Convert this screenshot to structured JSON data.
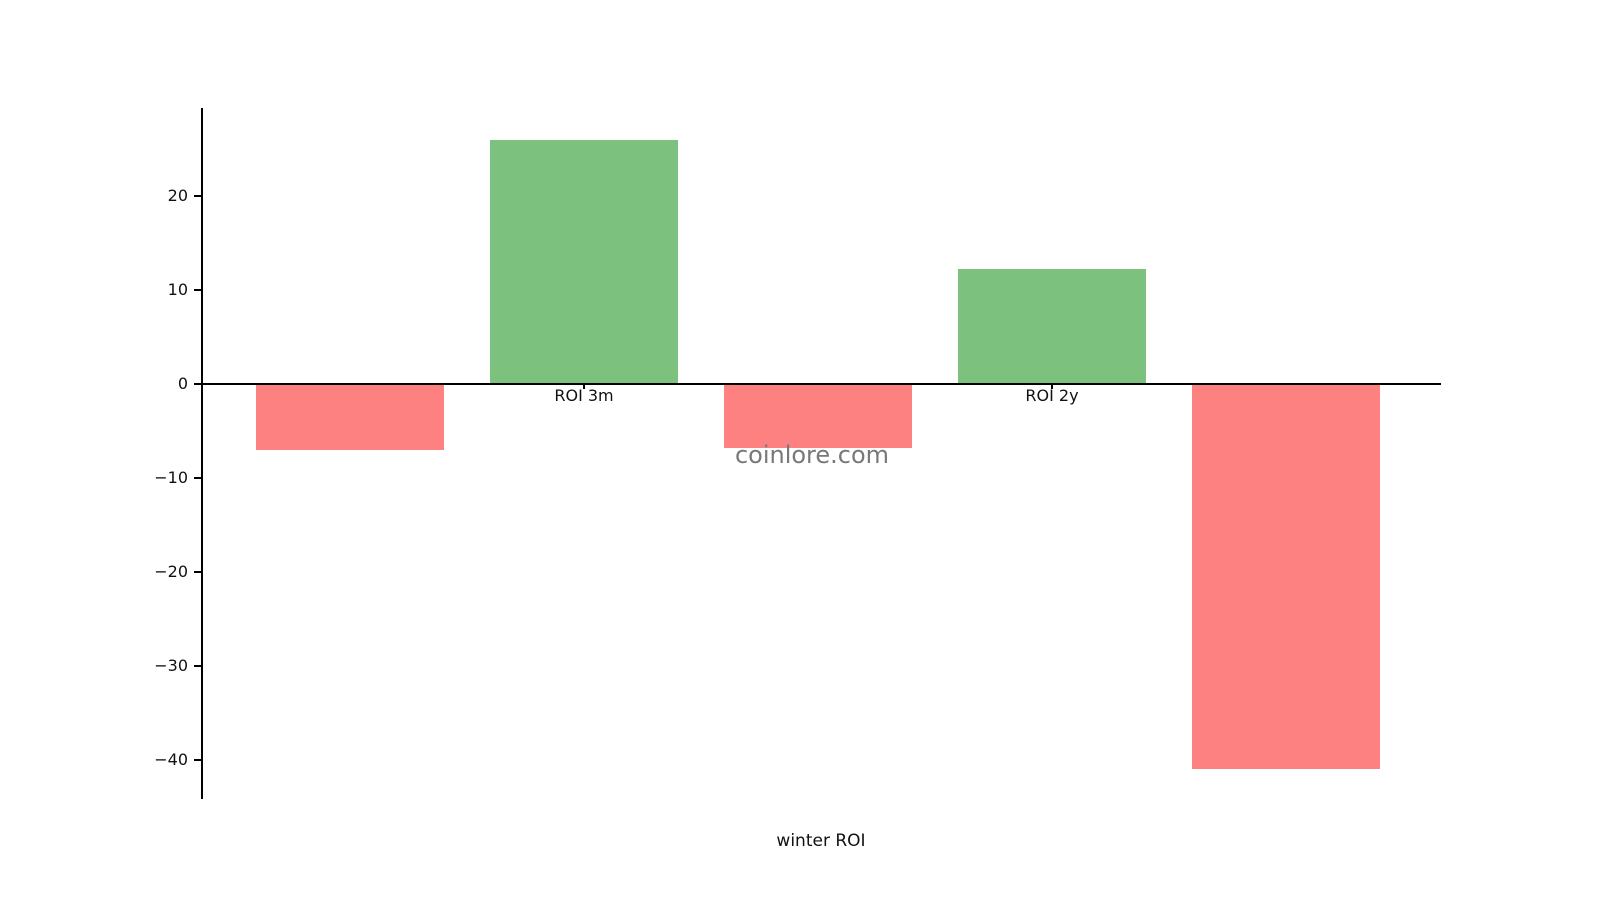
{
  "page": {
    "background_color": "#ffffff"
  },
  "watermark": {
    "text": "coinlore.com",
    "color": "#787878"
  },
  "chart_data": {
    "type": "bar",
    "title": "",
    "xlabel": "winter ROI",
    "ylabel": "",
    "grid": false,
    "legend": null,
    "ylim": [
      -44.3,
      29.4
    ],
    "y_ticks": [
      {
        "value": 20,
        "label": "20"
      },
      {
        "value": 10,
        "label": "10"
      },
      {
        "value": 0,
        "label": "0"
      },
      {
        "value": -10,
        "label": "−10"
      },
      {
        "value": -20,
        "label": "−20"
      },
      {
        "value": -30,
        "label": "−30"
      },
      {
        "value": -40,
        "label": "−40"
      }
    ],
    "bars": [
      {
        "label": "",
        "value": -7
      },
      {
        "label": "ROI 3m",
        "value": 26
      },
      {
        "label": "",
        "value": -6.8
      },
      {
        "label": "ROI 2y",
        "value": 12.2
      },
      {
        "label": "",
        "value": -41
      }
    ],
    "colors": {
      "positive": "#7cc17e",
      "negative": "#fd8181",
      "axis": "#000000",
      "tick_text": "#111111"
    }
  }
}
